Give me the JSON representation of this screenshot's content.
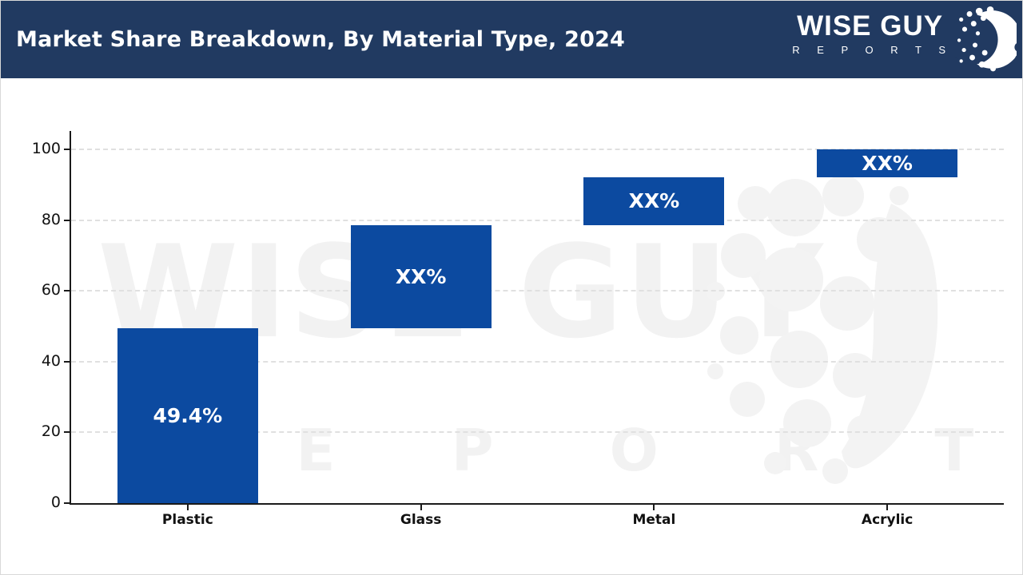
{
  "header": {
    "title": "Market Share Breakdown, By Material Type, 2024",
    "logo_line1": "WISE GUY",
    "logo_line2": "R E P O R T S"
  },
  "watermark": {
    "line1": "WISE GUY",
    "line2": "R E P O R T S"
  },
  "colors": {
    "header_bg": "#213a61",
    "bar": "#0c4aa0",
    "bar_label": "#ffffff",
    "gridline": "#e0e0e0",
    "axis": "#1a1a1a",
    "watermark": "#f2f2f2"
  },
  "chart_data": {
    "type": "bar",
    "variant": "waterfall",
    "title": "Market Share Breakdown, By Material Type, 2024",
    "categories": [
      "Plastic",
      "Glass",
      "Metal",
      "Acrylic"
    ],
    "series": [
      {
        "name": "Market share (%)",
        "segments": [
          {
            "category": "Plastic",
            "start": 0,
            "end": 49.4,
            "label": "49.4%"
          },
          {
            "category": "Glass",
            "start": 49.4,
            "end": 78.6,
            "label": "XX%"
          },
          {
            "category": "Metal",
            "start": 78.6,
            "end": 92.2,
            "label": "XX%"
          },
          {
            "category": "Acrylic",
            "start": 92.2,
            "end": 100,
            "label": "XX%"
          }
        ]
      }
    ],
    "xlabel": "",
    "ylabel": "",
    "ylim": [
      0,
      105
    ],
    "yticks": [
      0,
      20,
      40,
      60,
      80,
      100
    ],
    "grid": "horizontal-dashed",
    "legend": "none"
  }
}
